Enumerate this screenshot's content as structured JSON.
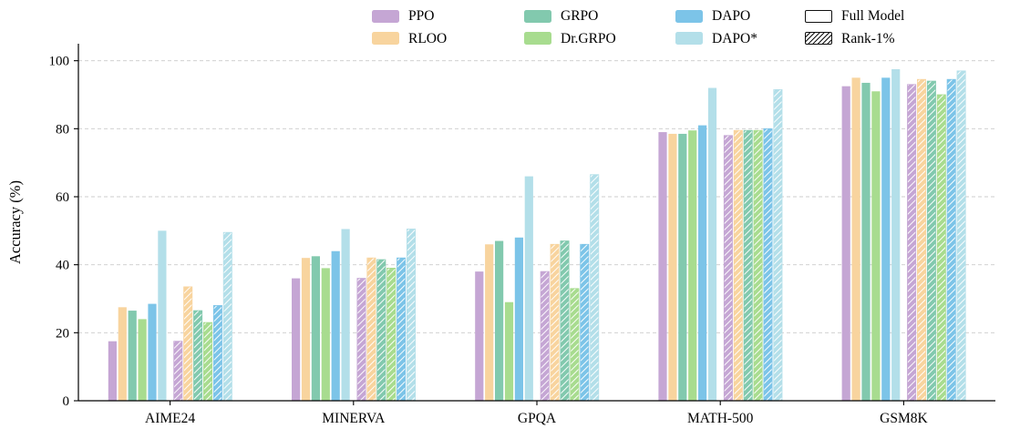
{
  "chart_data": {
    "type": "bar",
    "title": "",
    "xlabel": "",
    "ylabel": "Accuracy (%)",
    "ylim": [
      0,
      105
    ],
    "yticks": [
      0,
      20,
      40,
      60,
      80,
      100
    ],
    "grid": "dashed-horizontal",
    "legend_position": "top",
    "categories": [
      "AIME24",
      "MINERVA",
      "GPQA",
      "MATH-500",
      "GSM8K"
    ],
    "variants": [
      {
        "key": "full",
        "label": "Full Model",
        "style": "solid"
      },
      {
        "key": "rank1",
        "label": "Rank-1%",
        "style": "hatched"
      }
    ],
    "series": [
      {
        "name": "PPO",
        "color": "#c5a6d4",
        "full": [
          17.5,
          36.0,
          38.0,
          79.0,
          92.5
        ],
        "rank1": [
          17.5,
          36.0,
          38.0,
          78.0,
          93.0
        ]
      },
      {
        "name": "RLOO",
        "color": "#f8d49e",
        "full": [
          27.5,
          42.0,
          46.0,
          78.5,
          95.0
        ],
        "rank1": [
          33.5,
          42.0,
          46.0,
          79.5,
          94.5
        ]
      },
      {
        "name": "GRPO",
        "color": "#82c9ae",
        "full": [
          26.5,
          42.5,
          47.0,
          78.5,
          93.5
        ],
        "rank1": [
          26.5,
          41.5,
          47.0,
          79.5,
          94.0
        ]
      },
      {
        "name": "Dr.GRPO",
        "color": "#a8dc8f",
        "full": [
          24.0,
          39.0,
          29.0,
          79.5,
          91.0
        ],
        "rank1": [
          23.0,
          39.0,
          33.0,
          79.5,
          90.0
        ]
      },
      {
        "name": "DAPO",
        "color": "#7cc4e8",
        "full": [
          28.5,
          44.0,
          48.0,
          81.0,
          95.0
        ],
        "rank1": [
          28.0,
          42.0,
          46.0,
          80.0,
          94.5
        ]
      },
      {
        "name": "DAPO*",
        "color": "#b3dfe9",
        "full": [
          50.0,
          50.5,
          66.0,
          92.0,
          97.5
        ],
        "rank1": [
          49.5,
          50.5,
          66.5,
          91.5,
          97.0
        ]
      }
    ],
    "colors": {
      "axis": "#000000",
      "grid": "#cccccc",
      "background": "#ffffff"
    }
  }
}
